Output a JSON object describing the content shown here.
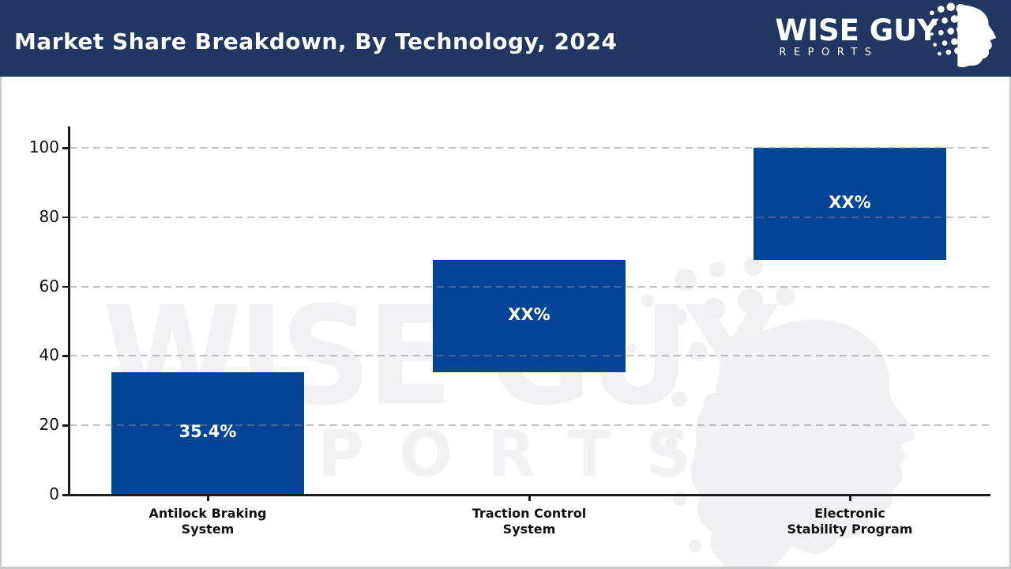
{
  "header": {
    "title": "Market Share Breakdown, By Technology, 2024",
    "background_color": "#213761",
    "logo": {
      "primary": "WISE GUY",
      "secondary": "REPORTS",
      "face_icon": "dotted-face-profile"
    }
  },
  "watermark": {
    "primary": "WISE GUY",
    "secondary": "REPORTS",
    "face_icon": "dotted-face-profile"
  },
  "chart_data": {
    "type": "bar",
    "subtype": "waterfall",
    "title": "Market Share Breakdown, By Technology, 2024",
    "categories": [
      "Antilock Braking System",
      "Traction Control System",
      "Electronic Stability Program"
    ],
    "category_label_lines": [
      [
        "Antilock Braking",
        "System"
      ],
      [
        "Traction Control",
        "System"
      ],
      [
        "Electronic",
        "Stability Program"
      ]
    ],
    "segments": [
      {
        "category": "Antilock Braking System",
        "start": 0,
        "end": 35.4,
        "label": "35.4%"
      },
      {
        "category": "Traction Control System",
        "start": 35.4,
        "end": 67.7,
        "label": "XX%"
      },
      {
        "category": "Electronic Stability Program",
        "start": 67.7,
        "end": 100,
        "label": "XX%"
      }
    ],
    "xlabel": "",
    "ylabel": "",
    "ylim": [
      0,
      100
    ],
    "yticks": [
      0,
      20,
      40,
      60,
      80,
      100
    ],
    "grid": "horizontal-dashed",
    "legend": "none",
    "bar_color": "#044596",
    "bar_label_color": "#ffffff",
    "axis_color": "#1c1c1c",
    "gridline_color": "#c9ccd2"
  }
}
